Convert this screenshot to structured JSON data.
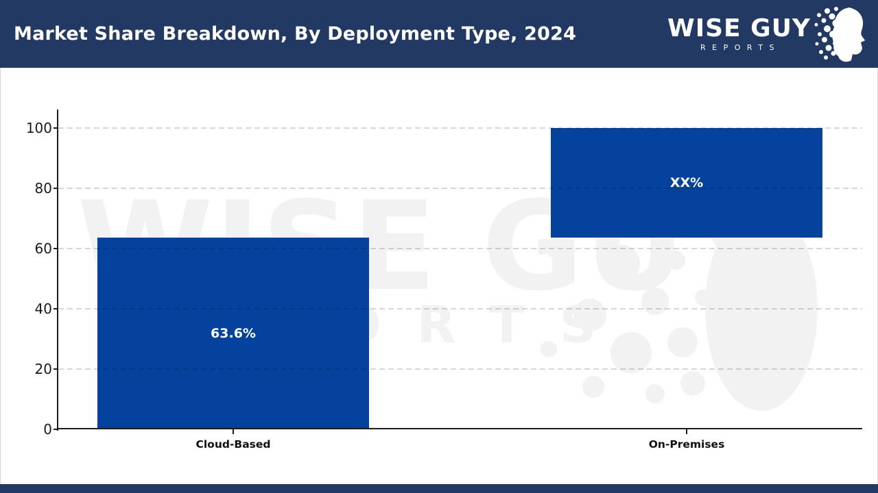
{
  "header": {
    "title": "Market Share Breakdown, By Deployment Type, 2024",
    "bg_color": "#223A63"
  },
  "logo": {
    "line1": "WISE GUY",
    "line2": "REPORTS"
  },
  "watermark": {
    "line1": "WISE GUY",
    "line2": "REPORTS"
  },
  "chart_data": {
    "type": "bar",
    "title": "Market Share Breakdown, By Deployment Type, 2024",
    "categories": [
      "Cloud-Based",
      "On-Premises"
    ],
    "bars": [
      {
        "category": "Cloud-Based",
        "start": 0,
        "end": 63.6,
        "value": 63.6,
        "value_label": "63.6%"
      },
      {
        "category": "On-Premises",
        "start": 63.6,
        "end": 100,
        "value": 36.4,
        "value_label": "XX%"
      }
    ],
    "y_ticks": [
      0,
      20,
      40,
      60,
      80,
      100
    ],
    "ylim": [
      0,
      106
    ],
    "xlabel": "",
    "ylabel": "",
    "grid": "horizontal-dashed",
    "legend": "none",
    "bar_color": "#05429D",
    "grid_color": "rgba(0,0,0,0.16)"
  }
}
